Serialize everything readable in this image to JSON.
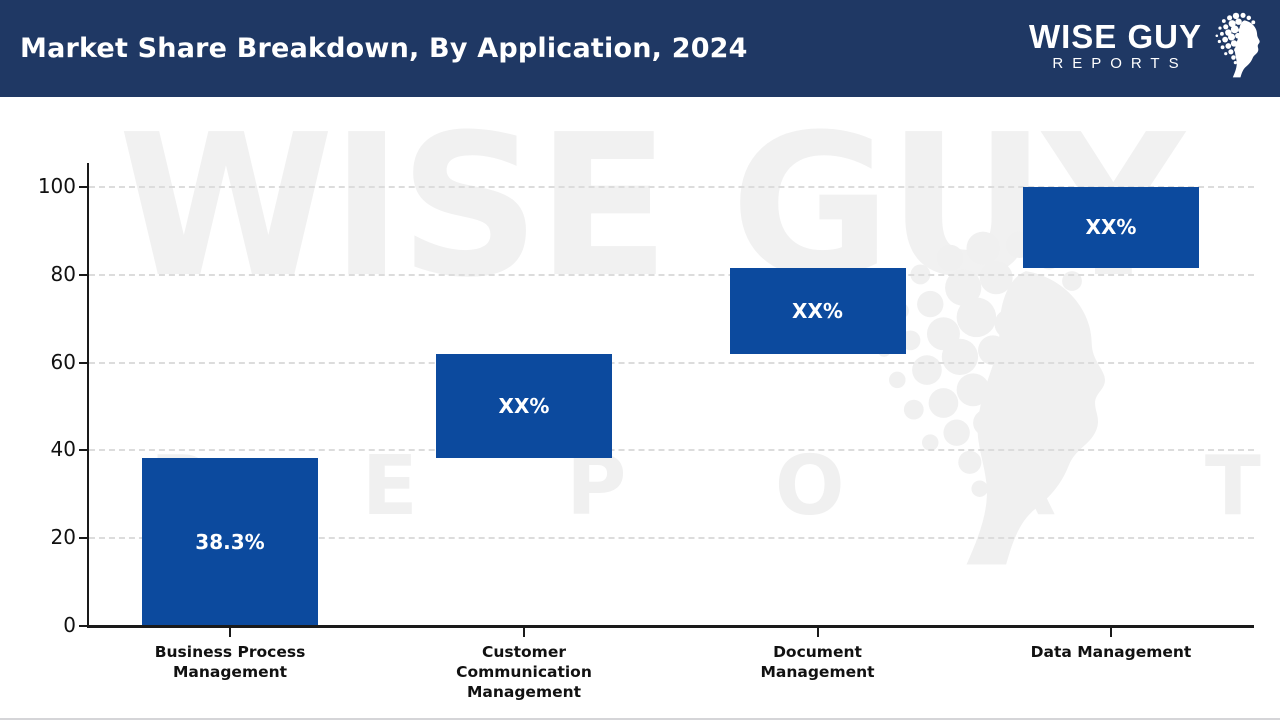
{
  "header": {
    "title": "Market Share Breakdown, By Application, 2024",
    "bg_color": "#1f3864",
    "logo": {
      "line1": "WISE GUY",
      "line2": "REPORTS"
    }
  },
  "watermark": {
    "line1": "WISE GUY",
    "line2": "R E P O R T S"
  },
  "chart_data": {
    "type": "bar",
    "subtype": "waterfall-segmented",
    "title": "Market Share Breakdown, By Application, 2024",
    "categories": [
      "Business Process Management",
      "Customer Communication Management",
      "Document Management",
      "Data Management"
    ],
    "segments": [
      {
        "label": "38.3%",
        "start": 0,
        "end": 38.3
      },
      {
        "label": "XX%",
        "start": 38.3,
        "end": 62.0
      },
      {
        "label": "XX%",
        "start": 62.0,
        "end": 81.6
      },
      {
        "label": "XX%",
        "start": 81.6,
        "end": 100.0
      }
    ],
    "yticks": [
      0,
      20,
      40,
      60,
      80,
      100
    ],
    "ylim": [
      0,
      105.5
    ],
    "xlabel": "",
    "ylabel": "",
    "bar_color": "#0c4a9e",
    "grid": "horizontal-dashed",
    "legend": "none"
  }
}
